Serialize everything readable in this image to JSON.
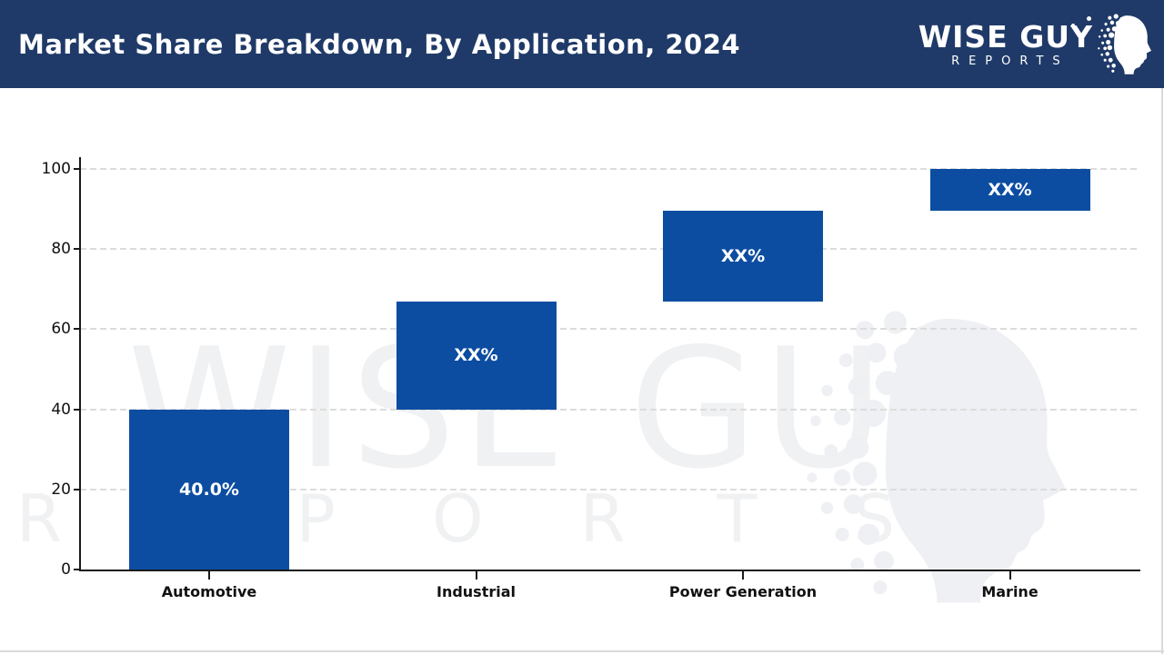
{
  "header": {
    "title": "Market Share Breakdown, By Application, 2024",
    "logo": {
      "line1": "WISE GUY",
      "line2": "REPORTS"
    }
  },
  "watermark": {
    "line1": "WISE GU",
    "line2": "REPORTS"
  },
  "colors": {
    "header_bg": "#1f3a68",
    "bar": "#0c4da2",
    "grid": "#dcdcdc",
    "axis": "#1a1a1a",
    "watermark": "#f0f1f3",
    "bar_label": "#ffffff"
  },
  "chart_data": {
    "type": "bar",
    "subtype": "waterfall",
    "title": "Market Share Breakdown, By Application, 2024",
    "categories": [
      "Automotive",
      "Industrial",
      "Power Generation",
      "Marine"
    ],
    "segments": [
      {
        "category": "Automotive",
        "start": 0,
        "end": 40,
        "value_label": "40.0%"
      },
      {
        "category": "Industrial",
        "start": 40,
        "end": 67,
        "value_label": "XX%"
      },
      {
        "category": "Power Generation",
        "start": 67,
        "end": 89.5,
        "value_label": "XX%"
      },
      {
        "category": "Marine",
        "start": 89.5,
        "end": 100,
        "value_label": "XX%"
      }
    ],
    "xlabel": "",
    "ylabel": "",
    "ylim": [
      0,
      105
    ],
    "yticks": [
      0,
      20,
      40,
      60,
      80,
      100
    ],
    "grid": "horizontal-dashed",
    "legend": "none",
    "bar_color": "#0c4da2"
  }
}
